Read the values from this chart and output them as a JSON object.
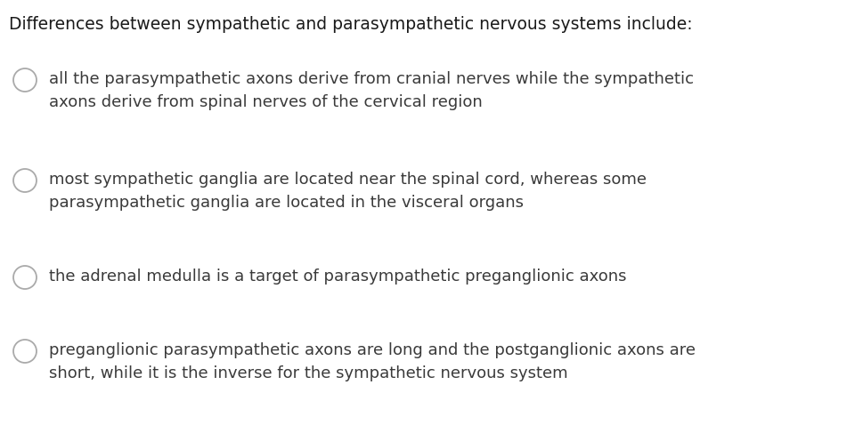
{
  "title": "Differences between sympathetic and parasympathetic nervous systems include:",
  "title_fontsize": 13.5,
  "title_color": "#1a1a1a",
  "background_color": "#ffffff",
  "items": [
    {
      "line1": "all the parasympathetic axons derive from cranial nerves while the sympathetic",
      "line2": "axons derive from spinal nerves of the cervical region"
    },
    {
      "line1": "most sympathetic ganglia are located near the spinal cord, whereas some",
      "line2": "parasympathetic ganglia are located in the visceral organs"
    },
    {
      "line1": "the adrenal medulla is a target of parasympathetic preganglionic axons",
      "line2": ""
    },
    {
      "line1": "preganglionic parasympathetic axons are long and the postganglionic axons are",
      "line2": "short, while it is the inverse for the sympathetic nervous system"
    }
  ],
  "text_color": "#3a3a3a",
  "text_fontsize": 13.0,
  "circle_color": "#aaaaaa",
  "circle_lw": 1.3,
  "fig_width": 9.69,
  "fig_height": 4.78,
  "dpi": 100
}
